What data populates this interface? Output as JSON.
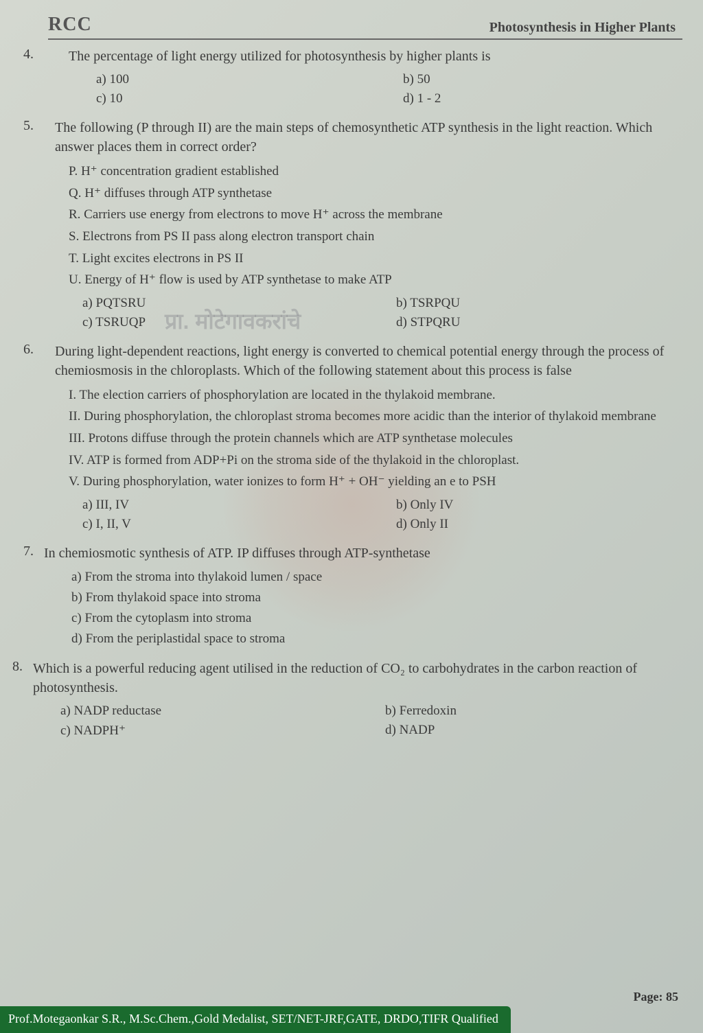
{
  "header": {
    "logo": "RCC",
    "chapter": "Photosynthesis in Higher Plants"
  },
  "q4": {
    "num": "4.",
    "text": "The percentage of light energy utilized for photosynthesis by higher plants is",
    "a": "a) 100",
    "b": "b) 50",
    "c": "c) 10",
    "d": "d) 1 - 2"
  },
  "q5": {
    "num": "5.",
    "text": "The following (P through II) are the main steps of chemosynthetic ATP synthesis in the light reaction. Which answer places them in correct order?",
    "p": "P. H⁺ concentration gradient established",
    "q": "Q. H⁺ diffuses through ATP synthetase",
    "r": "R. Carriers use energy from electrons to move H⁺ across the membrane",
    "s": "S. Electrons from PS II pass along electron transport chain",
    "t": "T. Light excites electrons in PS II",
    "u": "U. Energy of H⁺ flow is used by ATP synthetase to make ATP",
    "a": "a)  PQTSRU",
    "b": "b) TSRPQU",
    "c": "c)  TSRUQP",
    "d": "d) STPQRU"
  },
  "q6": {
    "num": "6.",
    "text": "During light-dependent reactions, light energy is converted to chemical potential energy through the process of chemiosmosis in the chloroplasts. Which of the following statement about this process is false",
    "i": "I. The election carriers of phosphorylation are located in the thylakoid membrane.",
    "ii": "II. During phosphorylation, the chloroplast stroma becomes more acidic than the interior of thylakoid membrane",
    "iii": "III. Protons diffuse through the protein channels which are ATP synthetase molecules",
    "iv": "IV. ATP is formed from ADP+Pi on the stroma side of the thylakoid in the chloroplast.",
    "v": "V. During phosphorylation, water ionizes to form H⁺ + OH⁻ yielding an e to PSH",
    "a": "a)  III, IV",
    "b": "b) Only IV",
    "c": "c)  I, II, V",
    "d": "d) Only II"
  },
  "q7": {
    "num": "7.",
    "text": "In chemiosmotic synthesis of ATP. IP diffuses through ATP-synthetase",
    "a": "a)  From the stroma into thylakoid lumen / space",
    "b": "b)  From thylakoid space into stroma",
    "c": "c)  From the cytoplasm into stroma",
    "d": "d)  From the periplastidal space to stroma"
  },
  "q8": {
    "num": "8.",
    "text": "Which is a powerful reducing agent utilised in the reduction of CO₂ to carbohydrates in the carbon reaction of photosynthesis.",
    "a": "a)  NADP reductase",
    "b": "b) Ferredoxin",
    "c": "c)  NADPH⁺",
    "d": "d) NADP"
  },
  "watermark": "प्रा. मोटेगावकरांचे",
  "footer": "Prof.Motegaonkar S.R., M.Sc.Chem.,Gold Medalist, SET/NET-JRF,GATE, DRDO,TIFR Qualified",
  "pagenum": "Page: 85"
}
